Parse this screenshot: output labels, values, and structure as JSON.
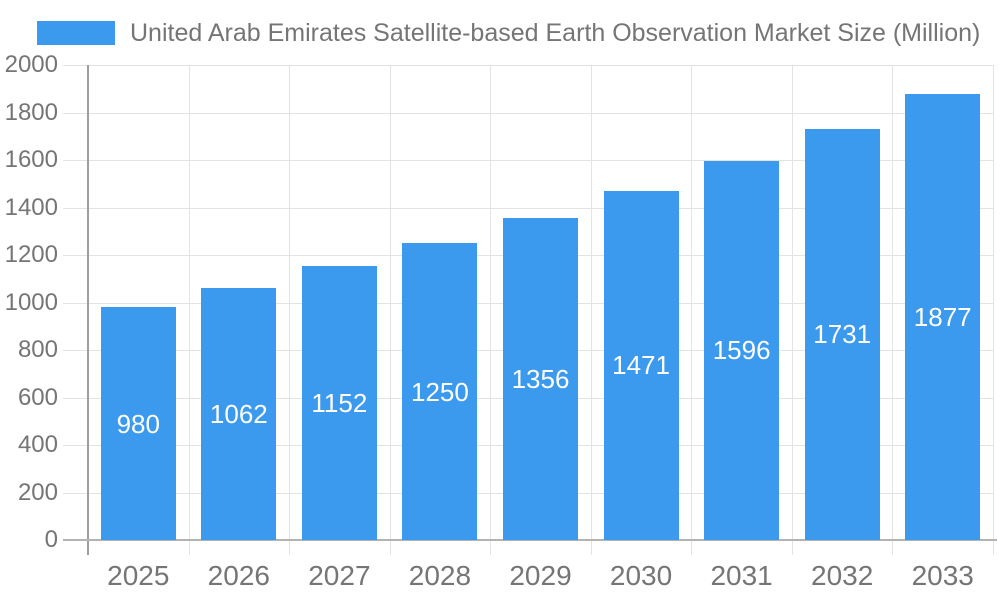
{
  "legend": {
    "label": "United Arab Emirates Satellite-based Earth Observation Market Size (Million)",
    "swatch_color": "#3b99ee"
  },
  "chart_data": {
    "type": "bar",
    "title": "United Arab Emirates Satellite-based Earth Observation Market Size (Million)",
    "categories": [
      "2025",
      "2026",
      "2027",
      "2028",
      "2029",
      "2030",
      "2031",
      "2032",
      "2033"
    ],
    "values": [
      980,
      1062,
      1152,
      1250,
      1356,
      1471,
      1596,
      1731,
      1877
    ],
    "xlabel": "",
    "ylabel": "",
    "ylim": [
      0,
      2000
    ],
    "yticks": [
      0,
      200,
      400,
      600,
      800,
      1000,
      1200,
      1400,
      1600,
      1800,
      2000
    ],
    "grid": true,
    "legend_position": "top-left",
    "bar_color": "#3b99ee",
    "value_label_color": "#ffffff",
    "axis_text_color": "#757575",
    "gridline_color": "#e3e3e3",
    "axis_line_color": "#9e9e9e"
  }
}
